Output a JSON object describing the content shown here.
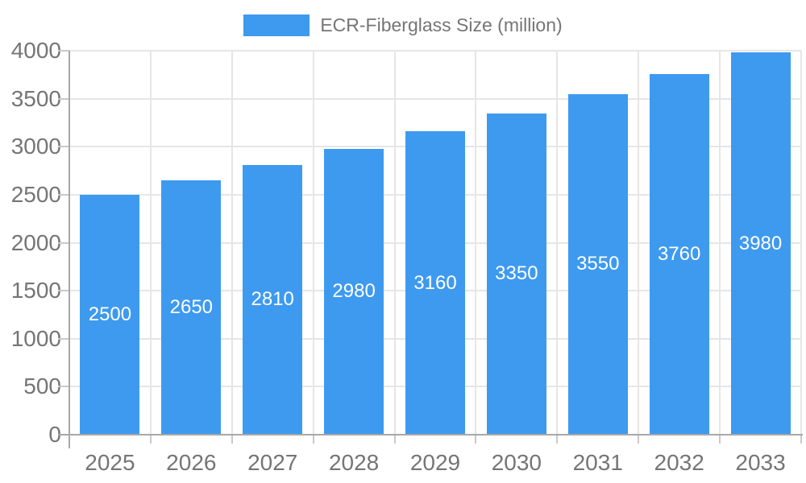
{
  "legend": {
    "label": "ECR-Fiberglass Size (million)"
  },
  "colors": {
    "bar": "#3E9AEF",
    "axis_label": "#757575",
    "value_label": "#ffffff",
    "gridline": "#e6e6e6",
    "axis_line": "#a8a8a8",
    "tick": "#c9c9c9",
    "background": "#ffffff"
  },
  "chart_data": {
    "type": "bar",
    "title": "",
    "xlabel": "",
    "ylabel": "",
    "categories": [
      "2025",
      "2026",
      "2027",
      "2028",
      "2029",
      "2030",
      "2031",
      "2032",
      "2033"
    ],
    "series": [
      {
        "name": "ECR-Fiberglass Size (million)",
        "values": [
          2500,
          2650,
          2810,
          2980,
          3160,
          3350,
          3550,
          3760,
          3980
        ]
      }
    ],
    "ylim": [
      0,
      4000
    ],
    "yticks": [
      0,
      500,
      1000,
      1500,
      2000,
      2500,
      3000,
      3500,
      4000
    ],
    "grid": true,
    "legend_position": "top-center",
    "value_label_position": "inside-center"
  }
}
